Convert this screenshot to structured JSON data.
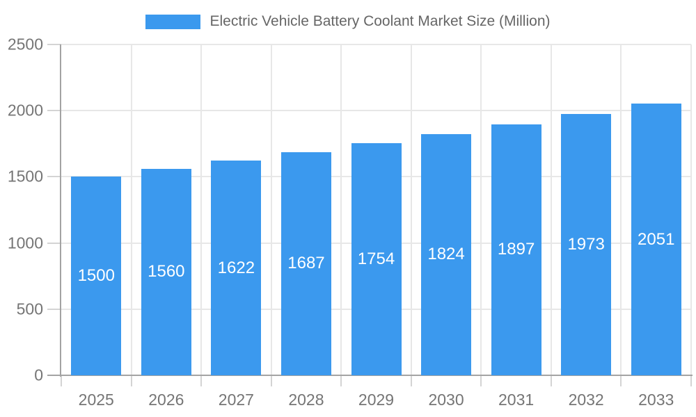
{
  "legend": {
    "label": "Electric Vehicle Battery Coolant Market Size (Million)"
  },
  "colors": {
    "bar": "#3B99EE",
    "bar_label": "#ffffff",
    "grid": "#e7e7e7",
    "axis": "#a3a3a3",
    "tick": "#d4d4d4",
    "tick_label": "#757575",
    "legend_text": "#666666",
    "background": "#ffffff"
  },
  "chart_data": {
    "type": "bar",
    "title": "Electric Vehicle Battery Coolant Market Size (Million)",
    "categories": [
      "2025",
      "2026",
      "2027",
      "2028",
      "2029",
      "2030",
      "2031",
      "2032",
      "2033"
    ],
    "values": [
      1500,
      1560,
      1622,
      1687,
      1754,
      1824,
      1897,
      1973,
      2051
    ],
    "xlabel": "",
    "ylabel": "",
    "ylim": [
      0,
      2500
    ],
    "yticks": [
      0,
      500,
      1000,
      1500,
      2000,
      2500
    ],
    "grid": true,
    "bar_labels": "centered-white-inside-bars",
    "legend_position": "top-center"
  }
}
